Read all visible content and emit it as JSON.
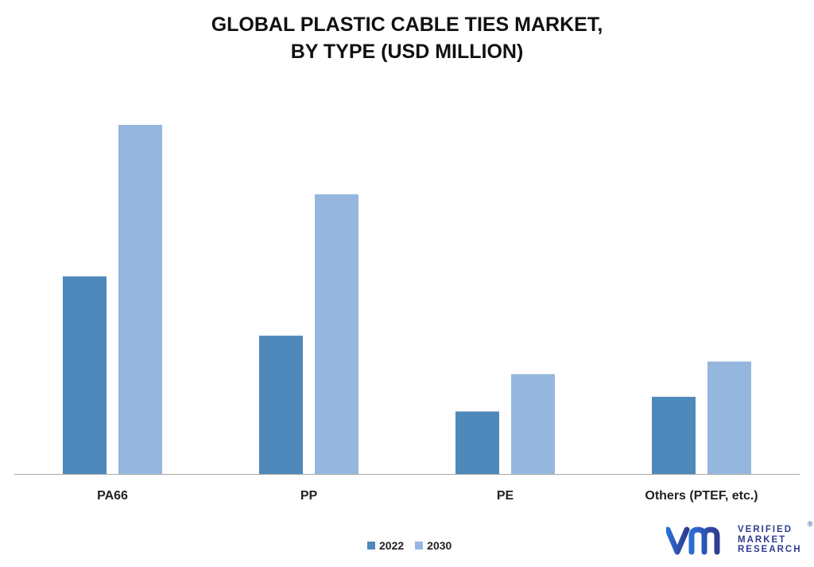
{
  "colors": {
    "series_2022": "#4f88bb",
    "series_2030": "#95b7dd",
    "axis": "#a6a6a6",
    "brand": "#2f3c8f"
  },
  "chart_data": {
    "type": "bar",
    "title_lines": [
      "GLOBAL PLASTIC CABLE TIES MARKET,",
      "BY TYPE (USD MILLION)"
    ],
    "categories": [
      "PA66",
      "PP",
      "PE",
      "Others (PTEF, etc.)"
    ],
    "series": [
      {
        "name": "2022",
        "values": [
          56.6,
          39.6,
          17.9,
          22.1
        ]
      },
      {
        "name": "2030",
        "values": [
          100,
          80.1,
          28.6,
          32.2
        ]
      }
    ],
    "ylim": [
      0,
      100
    ],
    "xlabel": "",
    "ylabel": "",
    "grid": false,
    "legend": "bottom-center"
  },
  "logo": {
    "mark": "vm",
    "words": [
      "VERIFIED",
      "MARKET",
      "RESEARCH"
    ],
    "registered": "®"
  }
}
